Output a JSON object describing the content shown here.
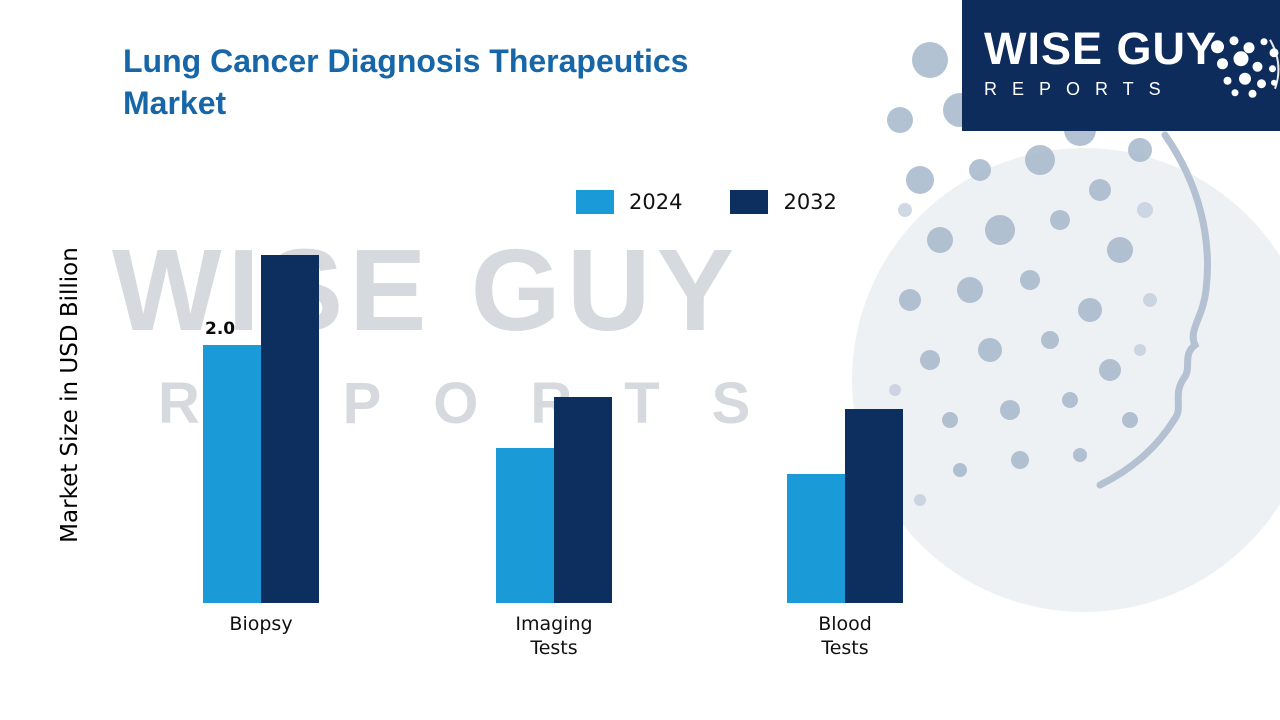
{
  "header": {
    "title": "Lung Cancer Diagnosis Therapeutics Market"
  },
  "logo": {
    "line1": "WISE GUY",
    "line2": "REPORTS"
  },
  "watermark": {
    "line1": "WISE GUY",
    "line2": "REPORTS"
  },
  "chart_data": {
    "type": "bar",
    "title": "Lung Cancer Diagnosis Therapeutics Market",
    "xlabel": "",
    "ylabel": "Market Size in USD Billion",
    "units": "USD Billion",
    "categories": [
      "Biopsy",
      "Imaging\nTests",
      "Blood\nTests"
    ],
    "series": [
      {
        "name": "2024",
        "color": "#1A9AD7",
        "values": [
          2.0,
          1.2,
          1.0
        ],
        "value_labels": [
          "2.0",
          "",
          ""
        ]
      },
      {
        "name": "2032",
        "color": "#0D2F5F",
        "values": [
          2.7,
          1.6,
          1.5
        ],
        "value_labels": [
          "",
          "",
          ""
        ]
      }
    ],
    "ylim": [
      0,
      3.0
    ],
    "legend_position": "top-center",
    "grid": false
  },
  "colors": {
    "title_text": "#1767A8",
    "logo_background": "#0D2C5B",
    "series_2024": "#1A9AD7",
    "series_2032": "#0D2F5F",
    "watermark_text": "#D6DADE",
    "decoration_circle": "#EEF1F4"
  }
}
